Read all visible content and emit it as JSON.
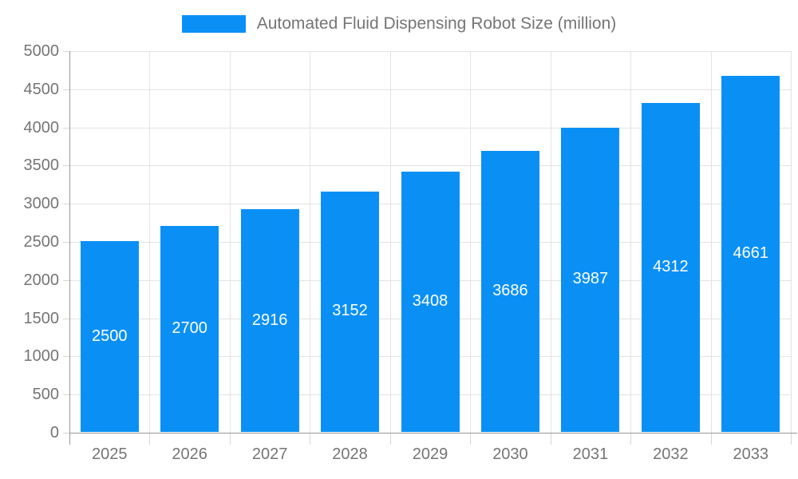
{
  "legend": {
    "label": "Automated Fluid Dispensing Robot Size (million)"
  },
  "chart_data": {
    "type": "bar",
    "title": "Automated Fluid Dispensing Robot Size (million)",
    "series_name": "Automated Fluid Dispensing Robot Size (million)",
    "categories": [
      "2025",
      "2026",
      "2027",
      "2028",
      "2029",
      "2030",
      "2031",
      "2032",
      "2033"
    ],
    "values": [
      2500,
      2700,
      2916,
      3152,
      3408,
      3686,
      3987,
      4312,
      4661
    ],
    "xlabel": "",
    "ylabel": "",
    "ylim": [
      0,
      5000
    ],
    "ytick_step": 500,
    "ytick_labels": [
      "0",
      "500",
      "1000",
      "1500",
      "2000",
      "2500",
      "3000",
      "3500",
      "4000",
      "4500",
      "5000"
    ],
    "grid": true,
    "legend_position": "top",
    "bar_label_position": "center-inside"
  },
  "colors": {
    "bar": "#0a90f5",
    "bar_label": "#ffffff",
    "axis_text": "#757575",
    "axis_line": "#999999",
    "gridline": "#e3e3e3",
    "background": "#ffffff"
  }
}
